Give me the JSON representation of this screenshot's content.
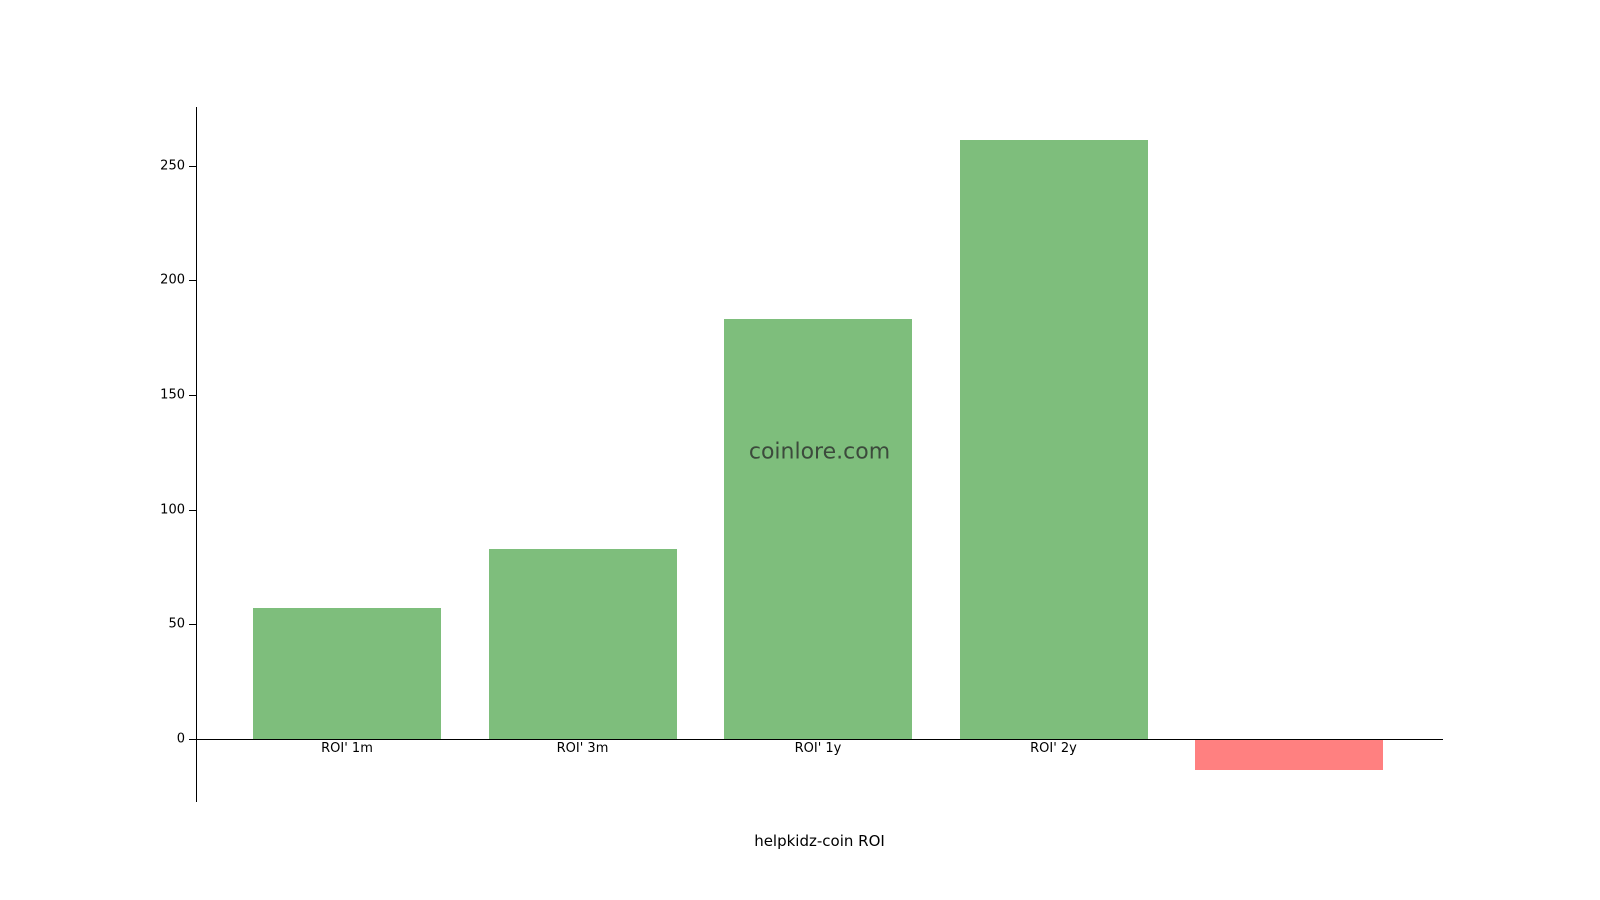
{
  "chart_data": {
    "type": "bar",
    "title": "helpkidz-coin ROI",
    "watermark": "coinlore.com",
    "categories": [
      "ROI' 1m",
      "ROI' 3m",
      "ROI' 1y",
      "ROI' 2y",
      ""
    ],
    "values": [
      57,
      83,
      183,
      261,
      -13
    ],
    "y_ticks": [
      0,
      50,
      100,
      150,
      200,
      250
    ],
    "ylim": [
      -27,
      276
    ],
    "xlabel": "",
    "ylabel": "",
    "grid": false,
    "legend": null,
    "colors": {
      "positive_bar": "#7ebe7c",
      "negative_bar": "#ff8080",
      "axis": "#000000",
      "tick_text": "#000000",
      "title_text": "#000000",
      "watermark_text": "#3c4a3c"
    }
  }
}
